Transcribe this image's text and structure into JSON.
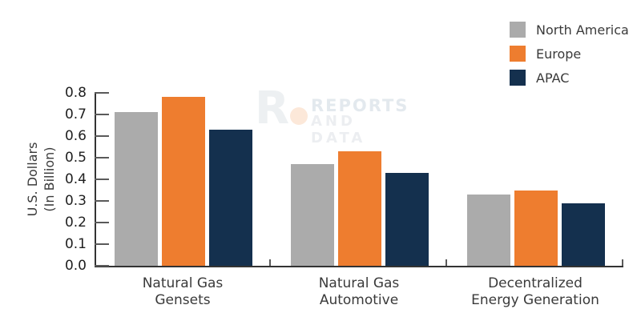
{
  "chart_data": {
    "type": "bar",
    "title": "",
    "categories": [
      [
        "Natural Gas",
        "Gensets"
      ],
      [
        "Natural Gas",
        "Automotive"
      ],
      [
        "Decentralized",
        "Energy Generation"
      ]
    ],
    "series": [
      {
        "name": "North America",
        "color": "#ABABAB",
        "values": [
          0.71,
          0.47,
          0.33
        ]
      },
      {
        "name": "Europe",
        "color": "#EE7D2F",
        "values": [
          0.78,
          0.53,
          0.35
        ]
      },
      {
        "name": "APAC",
        "color": "#14304E",
        "values": [
          0.63,
          0.43,
          0.29
        ]
      }
    ],
    "ylabel_line1": "U.S. Dollars",
    "ylabel_line2": "(In Billion)",
    "ylim": [
      0.0,
      0.8
    ],
    "ytick_step": 0.1,
    "ytick_labels": [
      "0.0",
      "0.1",
      "0.2",
      "0.3",
      "0.4",
      "0.5",
      "0.6",
      "0.7",
      "0.8"
    ],
    "legend_position": "top-right",
    "grid": false,
    "axis_color": "#333333",
    "label_color": "#3a3a3a"
  },
  "watermark": {
    "logo_letter": "R",
    "line1": "REPORTS",
    "line2": "AND DATA"
  }
}
